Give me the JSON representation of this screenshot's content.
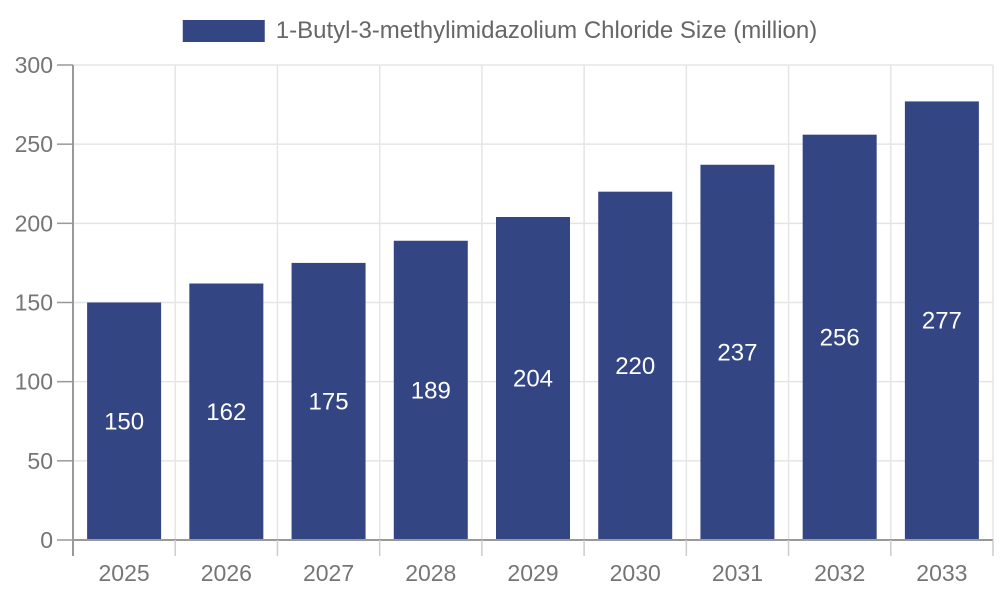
{
  "legend": {
    "label": "1-Butyl-3-methylimidazolium Chloride Size (million)"
  },
  "chart_data": {
    "type": "bar",
    "title": "1-Butyl-3-methylimidazolium Chloride Size (million)",
    "categories": [
      "2025",
      "2026",
      "2027",
      "2028",
      "2029",
      "2030",
      "2031",
      "2032",
      "2033"
    ],
    "values": [
      150,
      162,
      175,
      189,
      204,
      220,
      237,
      256,
      277
    ],
    "series_name": "1-Butyl-3-methylimidazolium Chloride Size (million)",
    "xlabel": "",
    "ylabel": "",
    "ylim": [
      0,
      300
    ],
    "yticks": [
      0,
      50,
      100,
      150,
      200,
      250,
      300
    ],
    "grid": "on",
    "legend_position": "top-center",
    "value_label_position": "inside-center",
    "colors": {
      "bar": "#344583",
      "value_label": "#ffffff",
      "grid_line": "#e5e5e8",
      "axis_line": "#999999",
      "x_tick_line": "#cccccc",
      "tick_label": "#757575",
      "legend_label": "#666666",
      "background": "#ffffff"
    }
  }
}
